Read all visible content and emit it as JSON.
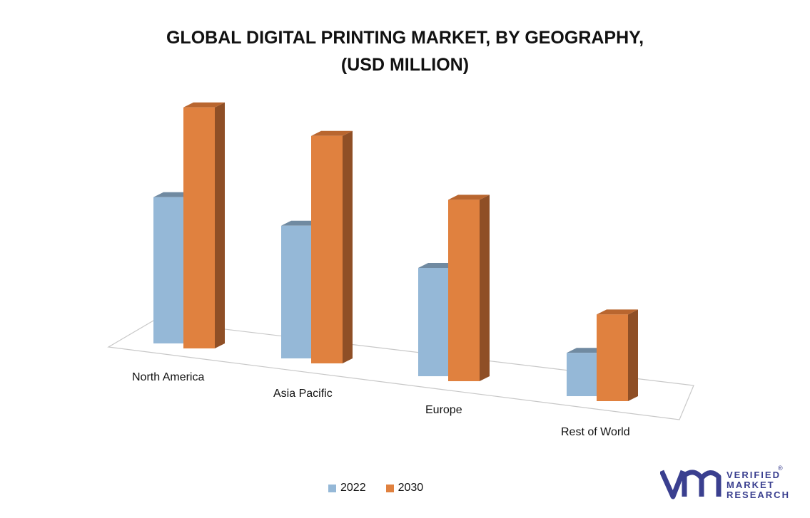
{
  "chart_data": {
    "type": "bar",
    "title_line1": "GLOBAL DIGITAL PRINTING MARKET, BY GEOGRAPHY,",
    "title_line2": "(USD MILLION)",
    "categories": [
      "North America",
      "Asia Pacific",
      "Europe",
      "Rest of World"
    ],
    "series": [
      {
        "name": "2022",
        "values": [
          54,
          49,
          40,
          16
        ],
        "color": "#95b8d7"
      },
      {
        "name": "2030",
        "values": [
          89,
          84,
          67,
          32
        ],
        "color": "#e0813f"
      }
    ],
    "ylim": [
      0,
      100
    ],
    "grid": false,
    "legend": "bottom",
    "style": "3d"
  },
  "logo": {
    "line1": "VERIFIED",
    "line2": "MARKET",
    "line3": "RESEARCH",
    "registered": "®",
    "color": "#3a3f8f",
    "accent": "#e0813f"
  }
}
